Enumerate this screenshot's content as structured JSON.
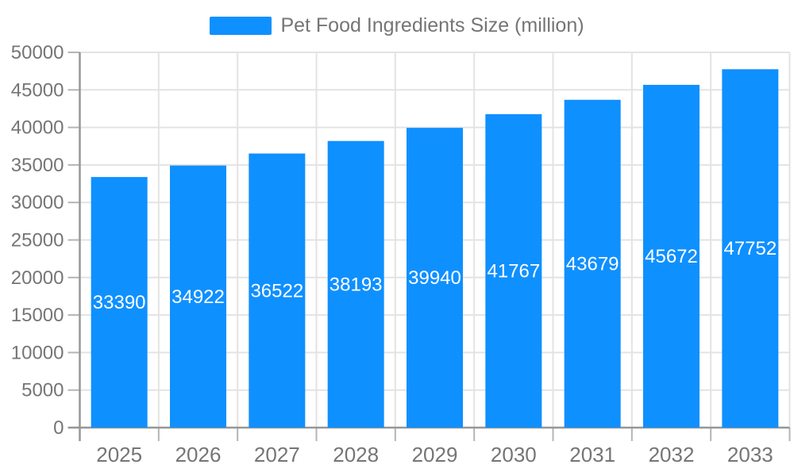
{
  "legend": {
    "label": "Pet Food Ingredients Size (million)"
  },
  "colors": {
    "bar": "#0f90ff",
    "axis_line": "#979797",
    "tick_line": "#b5b5b5",
    "grid_line": "#e3e3e3",
    "axis_text": "#757575",
    "bar_label_text": "#ffffff",
    "background": "#ffffff"
  },
  "chart_data": {
    "type": "bar",
    "title": "Pet Food Ingredients Size (million)",
    "categories": [
      "2025",
      "2026",
      "2027",
      "2028",
      "2029",
      "2030",
      "2031",
      "2032",
      "2033"
    ],
    "values": [
      33390,
      34922,
      36522,
      38193,
      39940,
      41767,
      43679,
      45672,
      47752
    ],
    "xlabel": "",
    "ylabel": "",
    "ylim": [
      0,
      50000
    ],
    "ytick_step": 5000,
    "grid": true,
    "legend_position": "top",
    "bar_label_position": "inside-center"
  }
}
